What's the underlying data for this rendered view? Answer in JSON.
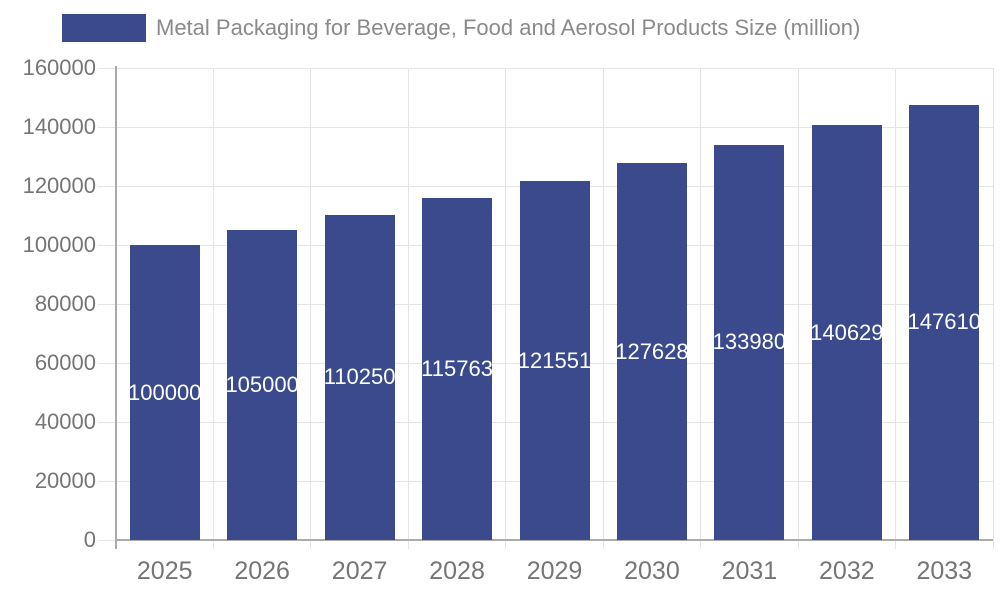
{
  "legend": {
    "label": "Metal Packaging for Beverage, Food and Aerosol Products Size (million)"
  },
  "chart_data": {
    "type": "bar",
    "title": "Metal Packaging for Beverage, Food and Aerosol Products Size (million)",
    "categories": [
      "2025",
      "2026",
      "2027",
      "2028",
      "2029",
      "2030",
      "2031",
      "2032",
      "2033"
    ],
    "values": [
      100000,
      105000,
      110250,
      115763,
      121551,
      127628,
      133980,
      140629,
      147610
    ],
    "bar_labels": [
      "100000",
      "105000",
      "110250",
      "115763",
      "121551",
      "127628",
      "133980",
      "140629",
      "147610"
    ],
    "xlabel": "",
    "ylabel": "",
    "ylim": [
      0,
      160000
    ],
    "yticks": [
      0,
      20000,
      40000,
      60000,
      80000,
      100000,
      120000,
      140000,
      160000
    ],
    "grid": true,
    "legend_position": "top",
    "bar_label_position": "inside-center",
    "colors": {
      "bar": "#3A4A8C",
      "bar_label": "#FFFFFF",
      "grid_line": "#E4E4E4",
      "axis_line": "#A9A9A9",
      "bottom_axis_line": "#ABABAB",
      "tick_label": "#757575",
      "legend_text": "#8A8A8A",
      "background": "#FFFFFF"
    }
  }
}
